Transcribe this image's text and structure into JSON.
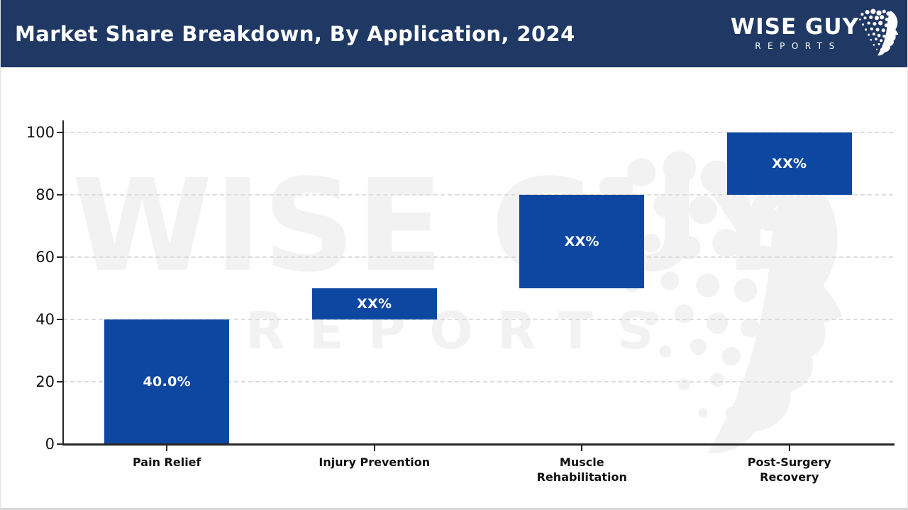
{
  "header": {
    "title": "Market Share Breakdown, By Application, 2024",
    "logo": {
      "wordmark": "WISE GUY",
      "subtext": "REPORTS"
    }
  },
  "watermark": {
    "wordmark": "WISE GUY",
    "subtext": "REPORTS"
  },
  "colors": {
    "header_bg": "#1f3864",
    "header_text": "#ffffff",
    "bar": "#0d47a1",
    "bar_label_text": "#ffffff",
    "axis": "#262626",
    "tick_label": "#111111",
    "gridline": "#dcdcdc",
    "watermark": "#f2f2f2",
    "background": "#ffffff"
  },
  "chart_data": {
    "type": "bar",
    "subtype": "waterfall",
    "title": "Market Share Breakdown, By Application, 2024",
    "categories": [
      "Pain Relief",
      "Injury Prevention",
      "Muscle Rehabilitation",
      "Post-Surgery Recovery"
    ],
    "bars": [
      {
        "category": "Pain Relief",
        "start": 0,
        "end": 40,
        "value": 40,
        "label": "40.0%"
      },
      {
        "category": "Injury Prevention",
        "start": 40,
        "end": 50,
        "value": 10,
        "label": "XX%"
      },
      {
        "category": "Muscle Rehabilitation",
        "start": 50,
        "end": 80,
        "value": 30,
        "label": "XX%"
      },
      {
        "category": "Post-Surgery Recovery",
        "start": 80,
        "end": 100,
        "value": 20,
        "label": "XX%"
      }
    ],
    "xlabel": "",
    "ylabel": "",
    "ylim": [
      0,
      100
    ],
    "yticks": [
      0,
      20,
      40,
      60,
      80,
      100
    ],
    "grid": true,
    "gridline_style": "dashed",
    "legend": false,
    "bar_color": "#0d47a1"
  }
}
